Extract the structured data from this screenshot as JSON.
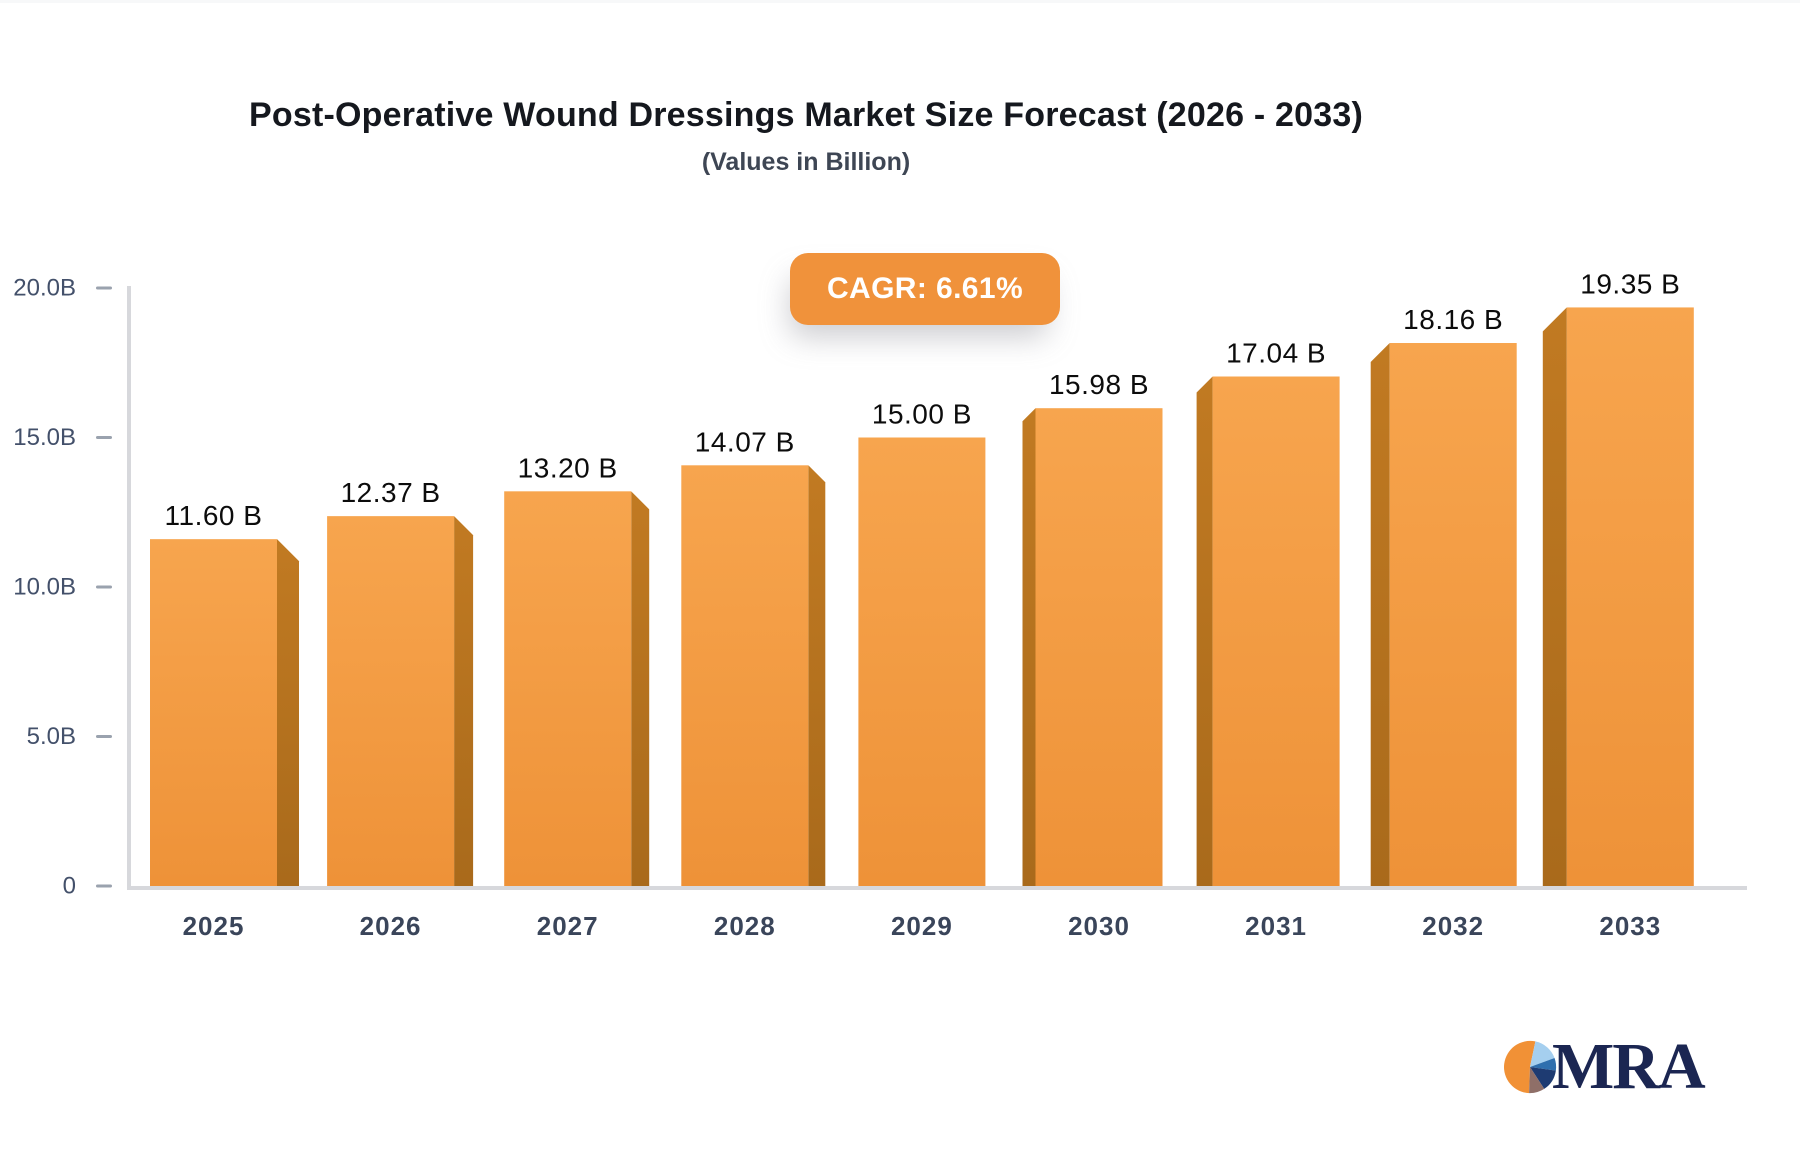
{
  "page": {
    "title": "Post-Operative Wound Dressings Market Size Forecast (2026 - 2033)",
    "subtitle": "(Values in Billion)"
  },
  "badge": {
    "label": "CAGR: 6.61%"
  },
  "chart_data": {
    "type": "bar",
    "title": "Post-Operative Wound Dressings Market Size Forecast (2026 - 2033)",
    "subtitle": "(Values in Billion)",
    "categories": [
      "2025",
      "2026",
      "2027",
      "2028",
      "2029",
      "2030",
      "2031",
      "2032",
      "2033"
    ],
    "values": [
      11.6,
      12.37,
      13.2,
      14.07,
      15.0,
      15.98,
      17.04,
      18.16,
      19.35
    ],
    "value_labels": [
      "11.60 B",
      "12.37 B",
      "13.20 B",
      "14.07 B",
      "15.00 B",
      "15.98 B",
      "17.04 B",
      "18.16 B",
      "19.35 B"
    ],
    "cagr_label": "CAGR: 6.61%",
    "yticks": [
      {
        "label": "20.0B",
        "value": 20
      },
      {
        "label": "15.0B",
        "value": 15
      },
      {
        "label": "10.0B",
        "value": 10
      },
      {
        "label": "5.0B",
        "value": 5
      },
      {
        "label": "0",
        "value": 0
      }
    ],
    "ylim": [
      0,
      20
    ],
    "xlabel": "",
    "ylabel": "",
    "grid": false,
    "legend": false,
    "bar_style": "3d-extruded-toward-center"
  },
  "logo": {
    "text": "MRA"
  },
  "colors": {
    "bar_face_top": "#F7A54E",
    "bar_face_bottom": "#EE9238",
    "bar_side_top": "#C17A22",
    "bar_side_bottom": "#A96A1B",
    "axis_line": "#D7D8DC",
    "tick_dash": "#9AA2AE",
    "tick_label": "#43506A",
    "year_label": "#3A455A",
    "value_label": "#0C0C0C",
    "badge_bg": "#F0923B",
    "badge_text": "#FFFFFF",
    "title_text": "#15181E",
    "subtitle_text": "#3E4654",
    "logo_navy": "#1B2652",
    "logo_orange": "#F19136",
    "logo_lightblue": "#A5CFEF",
    "logo_steelblue": "#2F6FAE",
    "logo_darkblue": "#1E3B72",
    "logo_brown": "#8F6F68"
  }
}
